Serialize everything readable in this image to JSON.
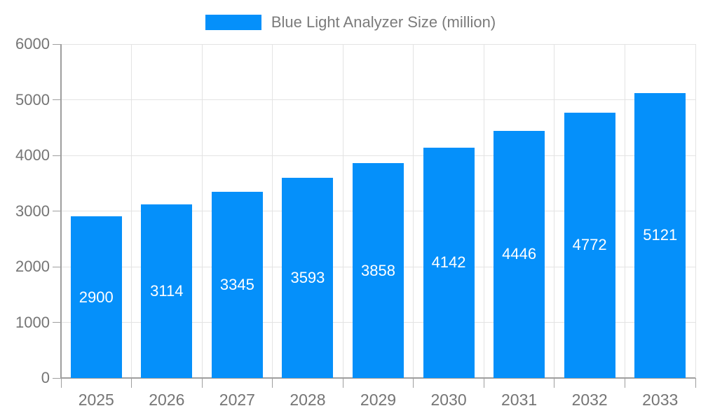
{
  "legend": {
    "label": "Blue Light Analyzer Size (million)",
    "swatch_color": "#0590FA"
  },
  "chart_data": {
    "type": "bar",
    "title": "Blue Light Analyzer Size (million)",
    "categories": [
      "2025",
      "2026",
      "2027",
      "2028",
      "2029",
      "2030",
      "2031",
      "2032",
      "2033"
    ],
    "series": [
      {
        "name": "Blue Light Analyzer Size (million)",
        "values": [
          2900,
          3114,
          3345,
          3593,
          3858,
          4142,
          4446,
          4772,
          5121
        ]
      }
    ],
    "data_labels": [
      "2900",
      "3114",
      "3345",
      "3593",
      "3858",
      "4142",
      "4446",
      "4772",
      "5121"
    ],
    "data_label_position": "inside-center",
    "xlabel": "",
    "ylabel": "",
    "ylim": [
      0,
      6000
    ],
    "yticks": [
      0,
      1000,
      2000,
      3000,
      4000,
      5000,
      6000
    ],
    "grid": true,
    "legend_position": "top-center",
    "colors": {
      "bar": "#0590FA",
      "bar_label_text": "#ffffff",
      "axis_line": "#9e9e9e",
      "grid_line": "#e3e3e3",
      "tick_text": "#757575",
      "legend_text": "#7b7b7b",
      "background": "#ffffff"
    }
  }
}
